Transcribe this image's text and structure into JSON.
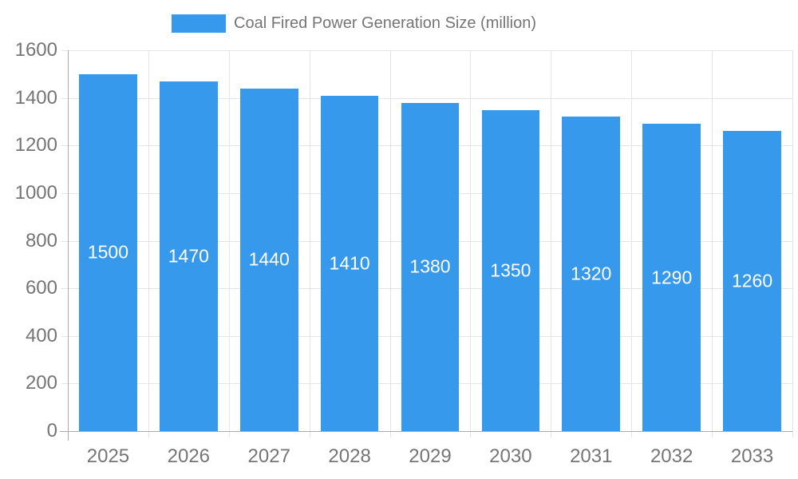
{
  "legend": {
    "label": "Coal Fired Power Generation Size (million)"
  },
  "colors": {
    "bar": "#3799ec",
    "grid": "#e5e5e5",
    "axis": "#ababab",
    "text": "#757575",
    "bar_label": "#ffffff"
  },
  "chart_data": {
    "type": "bar",
    "title": "",
    "xlabel": "",
    "ylabel": "",
    "categories": [
      "2025",
      "2026",
      "2027",
      "2028",
      "2029",
      "2030",
      "2031",
      "2032",
      "2033"
    ],
    "values": [
      1500,
      1470,
      1440,
      1410,
      1380,
      1350,
      1320,
      1290,
      1260
    ],
    "series_name": "Coal Fired Power Generation Size (million)",
    "bar_value_labels": [
      "1500",
      "1470",
      "1440",
      "1410",
      "1380",
      "1350",
      "1320",
      "1290",
      "1260"
    ],
    "ylim": [
      0,
      1600
    ],
    "yticks": [
      0,
      200,
      400,
      600,
      800,
      1000,
      1200,
      1400,
      1600
    ],
    "ytick_labels": [
      "0",
      "200",
      "400",
      "600",
      "800",
      "1000",
      "1200",
      "1400",
      "1600"
    ],
    "grid": true,
    "legend_position": "top",
    "value_labels_position": "center"
  }
}
